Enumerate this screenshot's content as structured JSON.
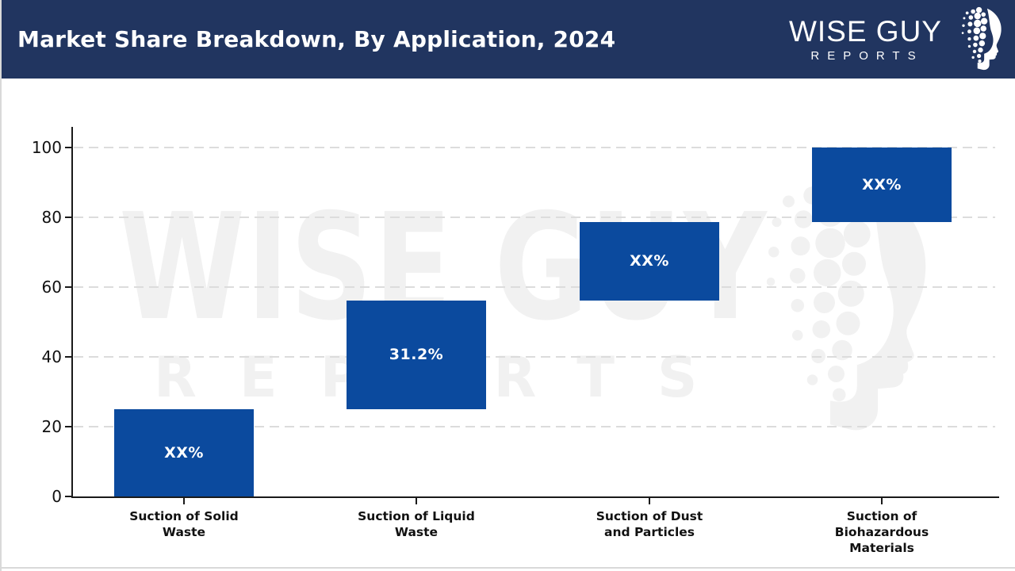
{
  "header": {
    "title": "Market Share Breakdown, By Application, 2024",
    "logo": {
      "line1": "WISE GUY",
      "line2": "REPORTS"
    }
  },
  "watermark": {
    "line1": "WISE GUY",
    "line2": "REPORTS"
  },
  "colors": {
    "header_bg": "#213560",
    "bar": "#0b4a9e",
    "grid": "#dcdcdc",
    "axis": "#1a1a1a",
    "watermark": "#f1f1f1",
    "title_text": "#ffffff"
  },
  "chart_data": {
    "type": "bar",
    "variant": "waterfall-style floating segments",
    "title": "Market Share Breakdown, By Application, 2024",
    "categories": [
      "Suction of Solid Waste",
      "Suction of Liquid Waste",
      "Suction of Dust and Particles",
      "Suction of Biohazardous Materials"
    ],
    "category_lines": [
      [
        "Suction of Solid",
        "Waste"
      ],
      [
        "Suction of Liquid",
        "Waste"
      ],
      [
        "Suction of Dust",
        "and Particles"
      ],
      [
        "Suction of",
        "Biohazardous",
        "Materials"
      ]
    ],
    "bars": [
      {
        "category": "Suction of Solid Waste",
        "start": 0,
        "end": 25,
        "label": "XX%"
      },
      {
        "category": "Suction of Liquid Waste",
        "start": 25,
        "end": 56.2,
        "label": "31.2%"
      },
      {
        "category": "Suction of Dust and Particles",
        "start": 56.2,
        "end": 78.6,
        "label": "XX%"
      },
      {
        "category": "Suction of Biohazardous Materials",
        "start": 78.6,
        "end": 100,
        "label": "XX%"
      }
    ],
    "xlabel": "",
    "ylabel": "",
    "yticks": [
      0,
      20,
      40,
      60,
      80,
      100
    ],
    "ylim": [
      0,
      100
    ],
    "grid": "horizontal dashed",
    "legend": "none"
  }
}
